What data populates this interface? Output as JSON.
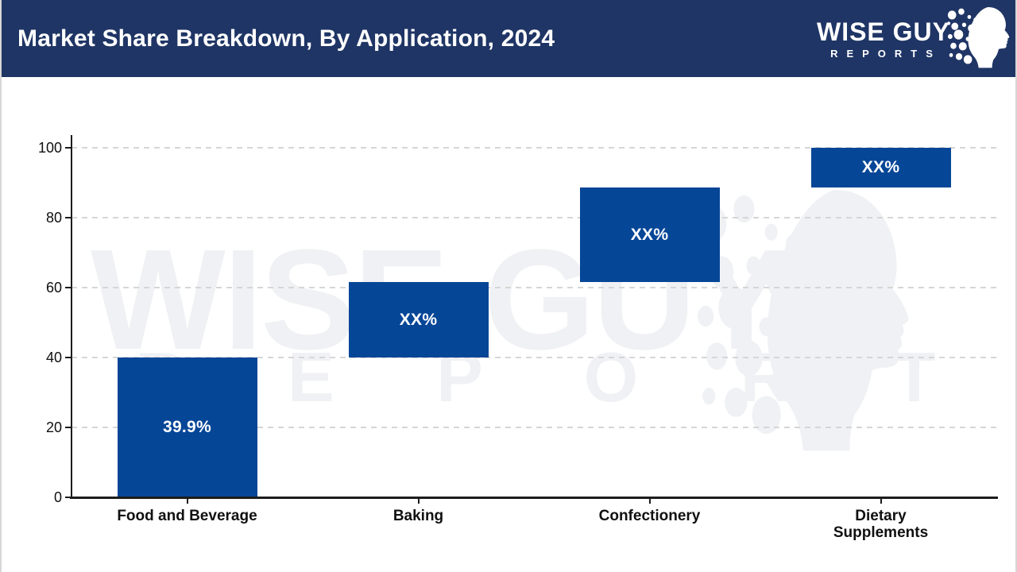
{
  "header": {
    "title": "Market Share Breakdown, By Application, 2024",
    "logo": {
      "line1": "WISE GUY",
      "line2": "REPORTS"
    },
    "bg_color": "#1f3565"
  },
  "watermark": {
    "line1": "WISE GUY",
    "line2": "R E P O R T S"
  },
  "chart_data": {
    "type": "bar",
    "subtype": "waterfall",
    "title": "Market Share Breakdown, By Application, 2024",
    "categories": [
      "Food and Beverage",
      "Baking",
      "Confectionery",
      "Dietary Supplements"
    ],
    "xlabel_lines": [
      [
        "Food and Beverage"
      ],
      [
        "Baking"
      ],
      [
        "Confectionery"
      ],
      [
        "Dietary",
        "Supplements"
      ]
    ],
    "bars": [
      {
        "category": "Food and Beverage",
        "start": 0,
        "end": 39.9,
        "label": "39.9%"
      },
      {
        "category": "Baking",
        "start": 39.9,
        "end": 61.6,
        "label": "XX%"
      },
      {
        "category": "Confectionery",
        "start": 61.6,
        "end": 88.6,
        "label": "XX%"
      },
      {
        "category": "Dietary Supplements",
        "start": 88.6,
        "end": 100,
        "label": "XX%"
      }
    ],
    "xlabel": "",
    "ylabel": "",
    "yticks": [
      0,
      20,
      40,
      60,
      80,
      100
    ],
    "ylim": [
      0,
      103.6
    ],
    "bar_color": "#064697",
    "grid": "horizontal-dashed",
    "legend": false
  }
}
